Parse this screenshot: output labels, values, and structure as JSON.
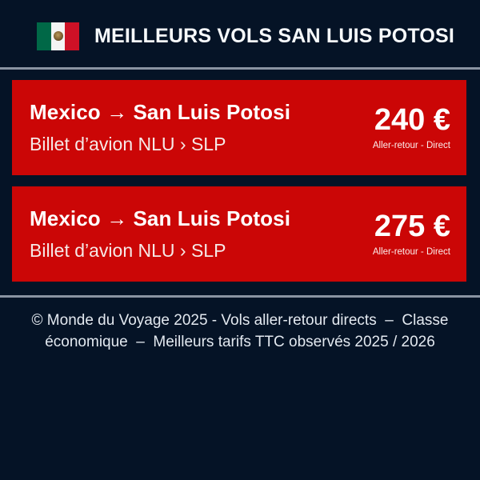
{
  "theme": {
    "background": "#051326",
    "card_red": "#cb0606",
    "divider": "#8a93a2",
    "flag_green": "#006847",
    "flag_red": "#ce1126",
    "text_white": "#ffffff"
  },
  "header": {
    "icon": "mexico-flag-icon",
    "title": "MEILLEURS VOLS SAN LUIS POTOSI"
  },
  "cards": [
    {
      "route": "Mexico → San Luis Potosi",
      "subtitle": "Billet d’avion NLU › SLP",
      "price": "240 €",
      "fare_note": "Aller-retour - Direct"
    },
    {
      "route": "Mexico → San Luis Potosi",
      "subtitle": "Billet d’avion NLU › SLP",
      "price": "275 €",
      "fare_note": "Aller-retour - Direct"
    }
  ],
  "footer": {
    "lines": [
      "© Monde du Voyage 2025 - Vols aller-retour directs  –  Classe",
      "économique  –  Meilleurs tarifs TTC observés 2025 / 2026"
    ]
  }
}
